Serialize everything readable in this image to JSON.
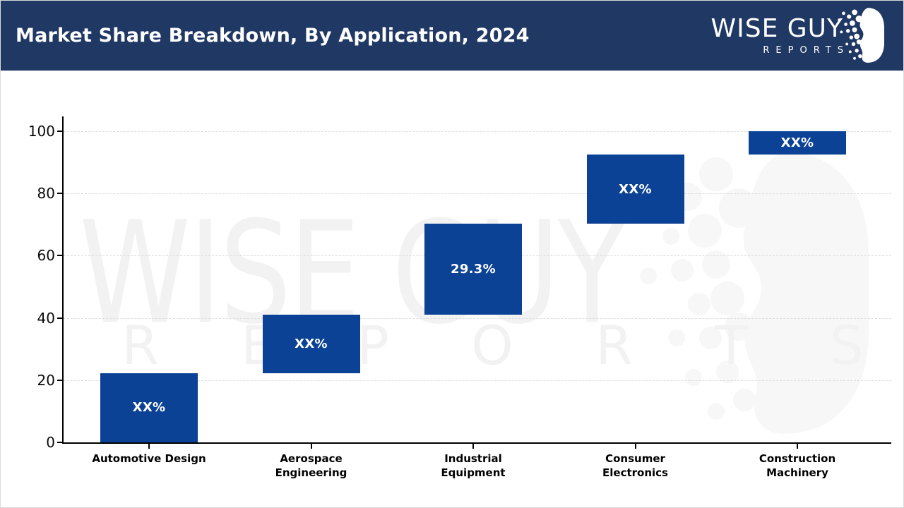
{
  "header": {
    "title": "Market Share Breakdown, By Application, 2024",
    "logo": {
      "line1": "WISE GUY",
      "line2": "REPORTS"
    }
  },
  "watermark": {
    "line1": "WISE GUY",
    "line2": "R E P O R T S"
  },
  "chart_data": {
    "type": "bar",
    "subtype": "floating-segment-waterfall",
    "title": "Market Share Breakdown, By Application, 2024",
    "categories": [
      {
        "name": "Automotive Design",
        "lines": [
          "Automotive Design"
        ]
      },
      {
        "name": "Aerospace Engineering",
        "lines": [
          "Aerospace",
          "Engineering"
        ]
      },
      {
        "name": "Industrial Equipment",
        "lines": [
          "Industrial",
          "Equipment"
        ]
      },
      {
        "name": "Consumer Electronics",
        "lines": [
          "Consumer",
          "Electronics"
        ]
      },
      {
        "name": "Construction Machinery",
        "lines": [
          "Construction",
          "Machinery"
        ]
      }
    ],
    "bars": [
      {
        "category": "Automotive Design",
        "start": 0,
        "end": 22.3,
        "value_label": "XX%"
      },
      {
        "category": "Aerospace Engineering",
        "start": 22.3,
        "end": 41.0,
        "value_label": "XX%"
      },
      {
        "category": "Industrial Equipment",
        "start": 41.0,
        "end": 70.3,
        "value_label": "29.3%"
      },
      {
        "category": "Consumer Electronics",
        "start": 70.3,
        "end": 92.5,
        "value_label": "XX%"
      },
      {
        "category": "Construction Machinery",
        "start": 92.5,
        "end": 100,
        "value_label": "XX%"
      }
    ],
    "yticks": [
      0,
      20,
      40,
      60,
      80,
      100
    ],
    "ylim": [
      0,
      105
    ],
    "xlabel": "",
    "ylabel": "",
    "grid": {
      "axis": "y",
      "style": "dashed"
    },
    "legend": "none",
    "colors": {
      "bar": "#0B4295",
      "bar_label": "#FFFFFF",
      "header_bg": "#203864",
      "grid": "#DCDCDC",
      "axis": "#000000",
      "watermark": "#F2F2F2"
    }
  }
}
